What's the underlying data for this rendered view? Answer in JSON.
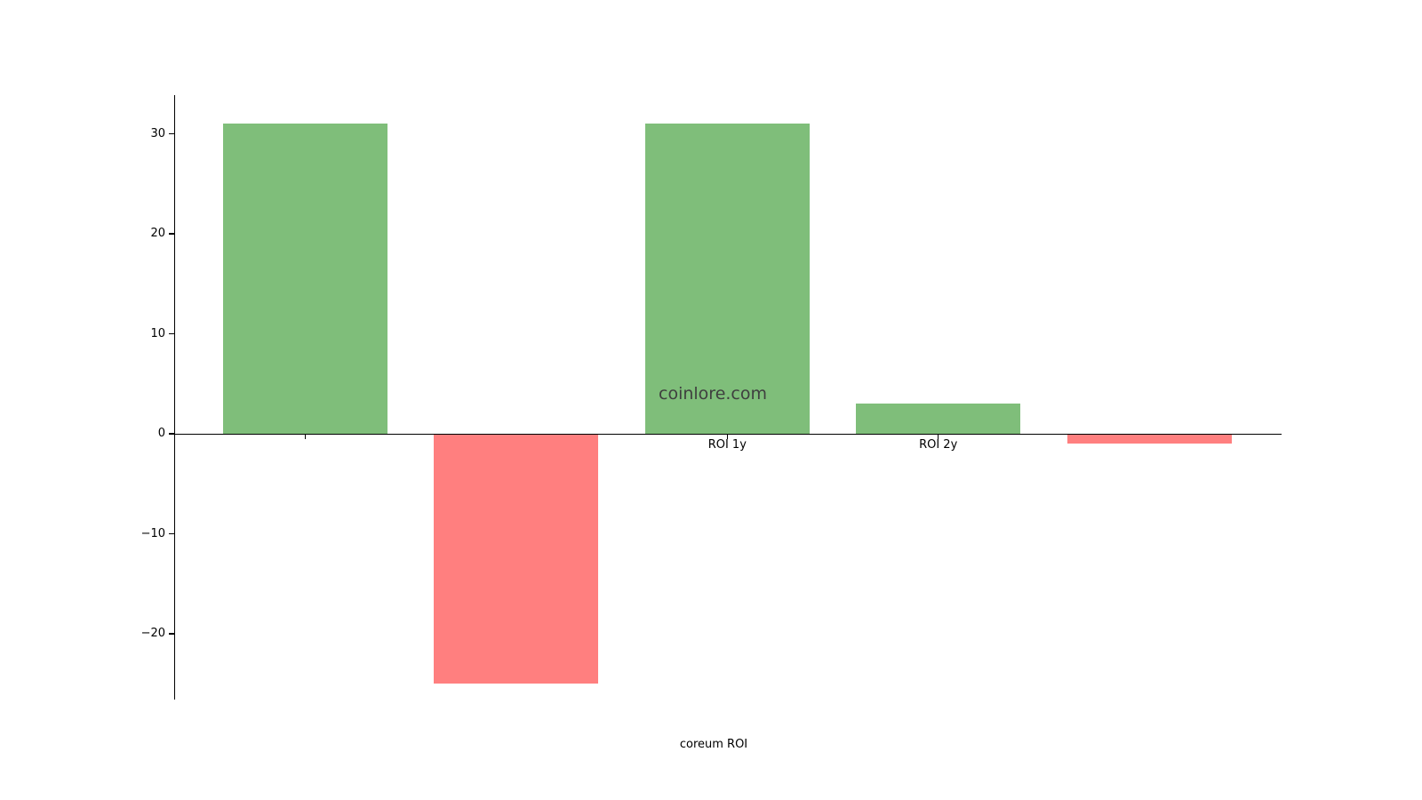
{
  "page": {
    "background": "#ffffff"
  },
  "chart_data": {
    "type": "bar",
    "title": "",
    "xlabel": "coreum ROI",
    "ylabel": "",
    "watermark": "coinlore.com",
    "categories": [
      "",
      "",
      "ROI 1y",
      "ROI 2y",
      ""
    ],
    "values": [
      31,
      -25,
      31,
      3,
      -1
    ],
    "positive_color": "#7fbe7a",
    "negative_color": "#ff7f7f",
    "axis_color": "#000000",
    "text_color": "#000000",
    "watermark_color": "#3f3f3f",
    "y_ticks": [
      30,
      20,
      10,
      0,
      -10,
      -20
    ],
    "x_tick_indices_visible": [
      0,
      2,
      3
    ],
    "ylim": [
      -26.6,
      34.0
    ],
    "grid": false,
    "legend": false
  }
}
